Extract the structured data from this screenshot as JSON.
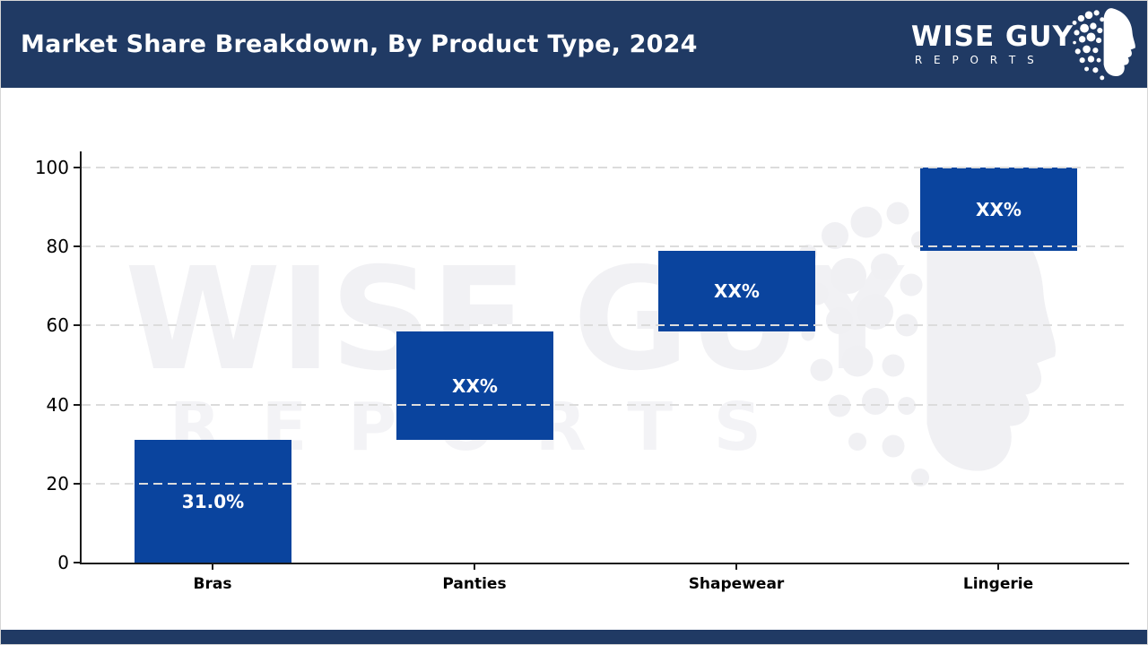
{
  "header": {
    "title": "Market Share Breakdown, By Product Type, 2024",
    "logo": {
      "line1": "WISE GUY",
      "line2": "R E P O R T S"
    },
    "bg_color": "#203A64",
    "text_color": "#FFFFFF"
  },
  "watermark": {
    "line1": "WISE GUY",
    "line2": "R E P O R T S"
  },
  "footer": {
    "bg_color": "#203A64"
  },
  "chart_data": {
    "type": "bar",
    "variant": "waterfall",
    "title": "Market Share Breakdown, By Product Type, 2024",
    "categories": [
      "Bras",
      "Panties",
      "Shapewear",
      "Lingerie"
    ],
    "segments": [
      {
        "category": "Bras",
        "from": 0,
        "to": 31,
        "label": "31.0%"
      },
      {
        "category": "Panties",
        "from": 31,
        "to": 58.5,
        "label": "XX%"
      },
      {
        "category": "Shapewear",
        "from": 58.5,
        "to": 79,
        "label": "XX%"
      },
      {
        "category": "Lingerie",
        "from": 79,
        "to": 100,
        "label": "XX%"
      }
    ],
    "xlabel": "",
    "ylabel": "",
    "ylim": [
      0,
      100
    ],
    "yticks": [
      0,
      20,
      40,
      60,
      80,
      100
    ],
    "grid": "horizontal-dashed",
    "legend": "none",
    "bar_color": "#0A449E",
    "bar_label_color": "#FFFFFF",
    "axis_color": "#1A1A1A",
    "gridline_color": "#DCDCDC"
  }
}
